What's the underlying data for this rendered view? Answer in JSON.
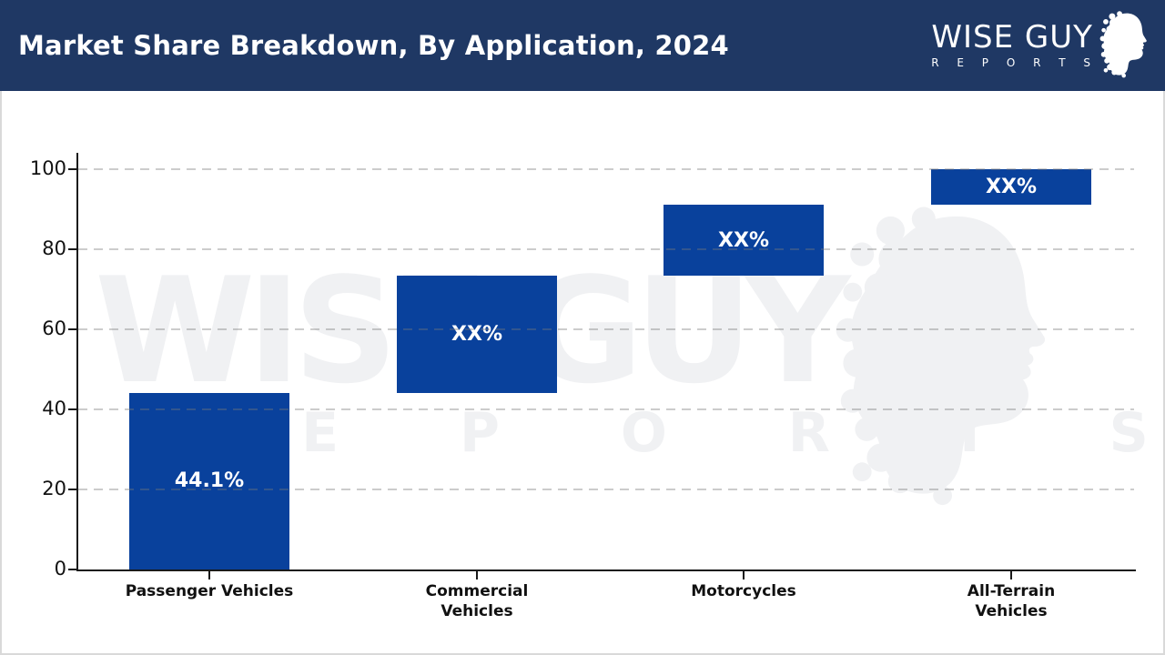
{
  "header": {
    "title": "Market Share Breakdown, By Application, 2024"
  },
  "logo": {
    "brand_top": "WISE GUY",
    "brand_bottom": "R E P O R T S"
  },
  "watermark": {
    "line1": "WISE GUY",
    "line2": "R E P O R T S"
  },
  "chart_data": {
    "type": "bar",
    "subtype": "waterfall",
    "title": "Market Share Breakdown, By Application, 2024",
    "xlabel": "",
    "ylabel": "",
    "ylim": [
      0,
      105
    ],
    "yticks": [
      0,
      20,
      40,
      60,
      80,
      100
    ],
    "grid": "horizontal-dashed, drawn over bars",
    "legend": "none",
    "categories": [
      "Passenger Vehicles",
      "Commercial Vehicles",
      "Motorcycles",
      "All-Terrain Vehicles"
    ],
    "category_label_lines": [
      [
        "Passenger Vehicles"
      ],
      [
        "Commercial",
        "Vehicles"
      ],
      [
        "Motorcycles"
      ],
      [
        "All-Terrain",
        "Vehicles"
      ]
    ],
    "segments": [
      {
        "category": "Passenger Vehicles",
        "start": 0,
        "end": 44.1,
        "value": 44.1,
        "label": "44.1%"
      },
      {
        "category": "Commercial Vehicles",
        "start": 44.1,
        "end": 73.4,
        "value": 29.3,
        "label": "XX%"
      },
      {
        "category": "Motorcycles",
        "start": 73.4,
        "end": 91.1,
        "value": 17.7,
        "label": "XX%"
      },
      {
        "category": "All-Terrain Vehicles",
        "start": 91.1,
        "end": 100,
        "value": 8.9,
        "label": "XX%"
      }
    ],
    "colors": {
      "bar": "#09419c",
      "bar_label": "#ffffff",
      "header_bg": "#1f3864",
      "axis": "#1a1a1a",
      "grid": "#d2d2d2",
      "watermark": "#f0f1f3",
      "frame_border": "#d9d9d9"
    }
  }
}
